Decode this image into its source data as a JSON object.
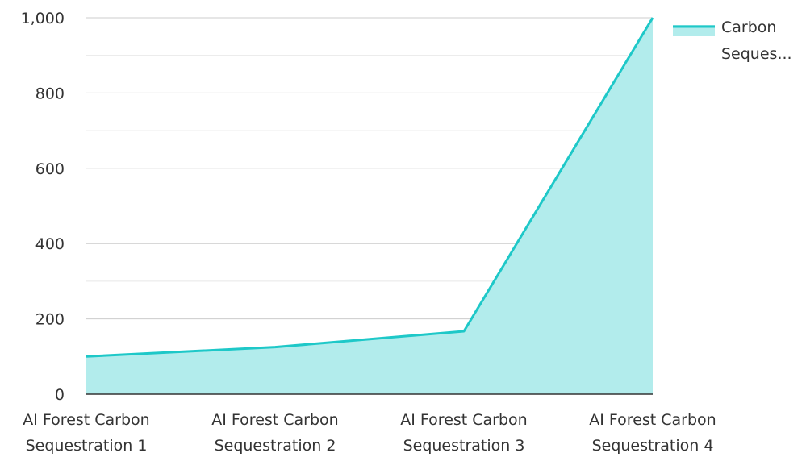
{
  "chart_data": {
    "type": "area",
    "categories": [
      "AI Forest Carbon Sequestration 1",
      "AI Forest Carbon Sequestration 2",
      "AI Forest Carbon Sequestration 3",
      "AI Forest Carbon Sequestration 4"
    ],
    "category_label_lines": [
      [
        "AI Forest Carbon",
        "Sequestration 1"
      ],
      [
        "AI Forest Carbon",
        "Sequestration 2"
      ],
      [
        "AI Forest Carbon",
        "Sequestration 3"
      ],
      [
        "AI Forest Carbon",
        "Sequestration 4"
      ]
    ],
    "series": [
      {
        "name": "Carbon Seques...",
        "values": [
          100,
          125,
          167,
          1000
        ],
        "line_color": "#1ec8c8",
        "fill_color": "#b2ecec"
      }
    ],
    "ylim": [
      0,
      1000
    ],
    "y_ticks": [
      0,
      200,
      400,
      600,
      800,
      1000
    ],
    "y_tick_labels": [
      "0",
      "200",
      "400",
      "600",
      "800",
      "1,000"
    ],
    "y_minor_ticks": [
      100,
      300,
      500,
      700,
      900
    ],
    "grid": true,
    "legend": {
      "position": "top-right",
      "lines": [
        "Carbon",
        "Seques..."
      ]
    },
    "colors": {
      "grid_major": "#cccccc",
      "grid_minor": "#e6e6e6",
      "axis": "#333333",
      "text": "#333333"
    }
  }
}
